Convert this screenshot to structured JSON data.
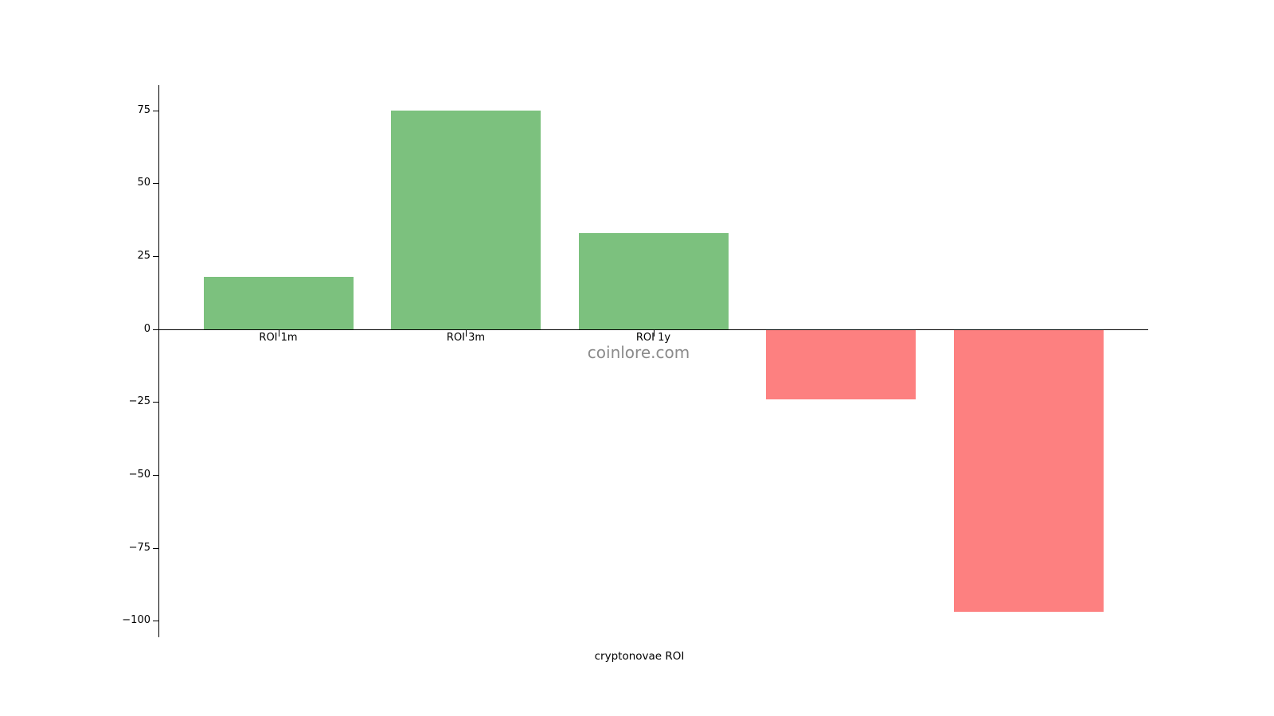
{
  "chart_data": {
    "type": "bar",
    "title": "cryptonovae ROI",
    "watermark": "coinlore.com",
    "categories": [
      "ROI 1m",
      "ROI 3m",
      "ROI 1y",
      "",
      ""
    ],
    "values": [
      18,
      75,
      33,
      -24,
      -97
    ],
    "yticks": [
      75,
      50,
      25,
      0,
      -25,
      -50,
      -75,
      -100
    ],
    "ylim": [
      -105.6,
      83.6
    ],
    "xlabel": "",
    "ylabel": "",
    "grid": false,
    "legend": "none",
    "positive_color": "#7cc17e",
    "negative_color": "#fd8080",
    "axis_color": "#000000",
    "text_color": "#000000",
    "watermark_color": "#8b8b8b"
  }
}
